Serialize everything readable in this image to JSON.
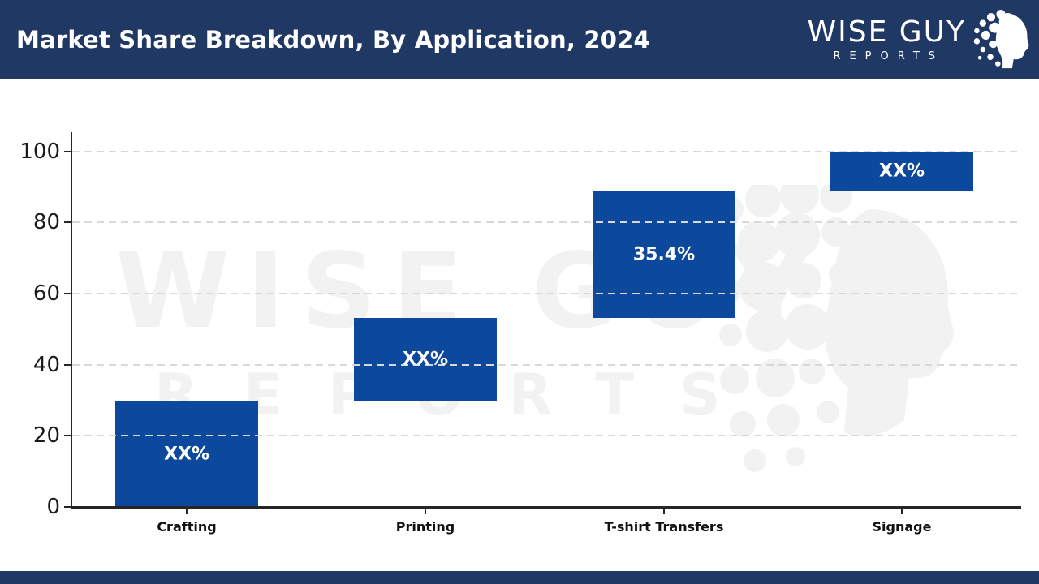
{
  "header": {
    "title": "Market Share Breakdown, By Application, 2024",
    "logo": {
      "line1": "WISE GUY",
      "line2": "REPORTS"
    },
    "bg_color": "#203864",
    "text_color": "#ffffff"
  },
  "footer": {
    "bg_color": "#203864"
  },
  "watermark": {
    "line1": "WISE GUY",
    "line2": "REPORTS"
  },
  "chart_data": {
    "type": "bar",
    "variant": "waterfall",
    "title": "Market Share Breakdown, By Application, 2024",
    "categories": [
      "Crafting",
      "Printing",
      "T-shirt Transfers",
      "Signage"
    ],
    "bar_starts": [
      0,
      29.8,
      53.2,
      88.6
    ],
    "bar_ends": [
      29.8,
      53.2,
      88.6,
      100
    ],
    "values_pct": [
      29.8,
      23.4,
      35.4,
      11.4
    ],
    "bar_labels": [
      "XX%",
      "XX%",
      "35.4%",
      "XX%"
    ],
    "yticks": [
      0,
      20,
      40,
      60,
      80,
      100
    ],
    "ylim": [
      0,
      105
    ],
    "xlabel": "",
    "ylabel": "",
    "grid": "horizontal-dashed-over-bars",
    "legend": "none",
    "bar_color": "#0c489c",
    "bar_label_color": "#ffffff",
    "axis_color": "#262626",
    "grid_color": "#d8d8d8",
    "tick_label_color": "#1a1a1a"
  }
}
